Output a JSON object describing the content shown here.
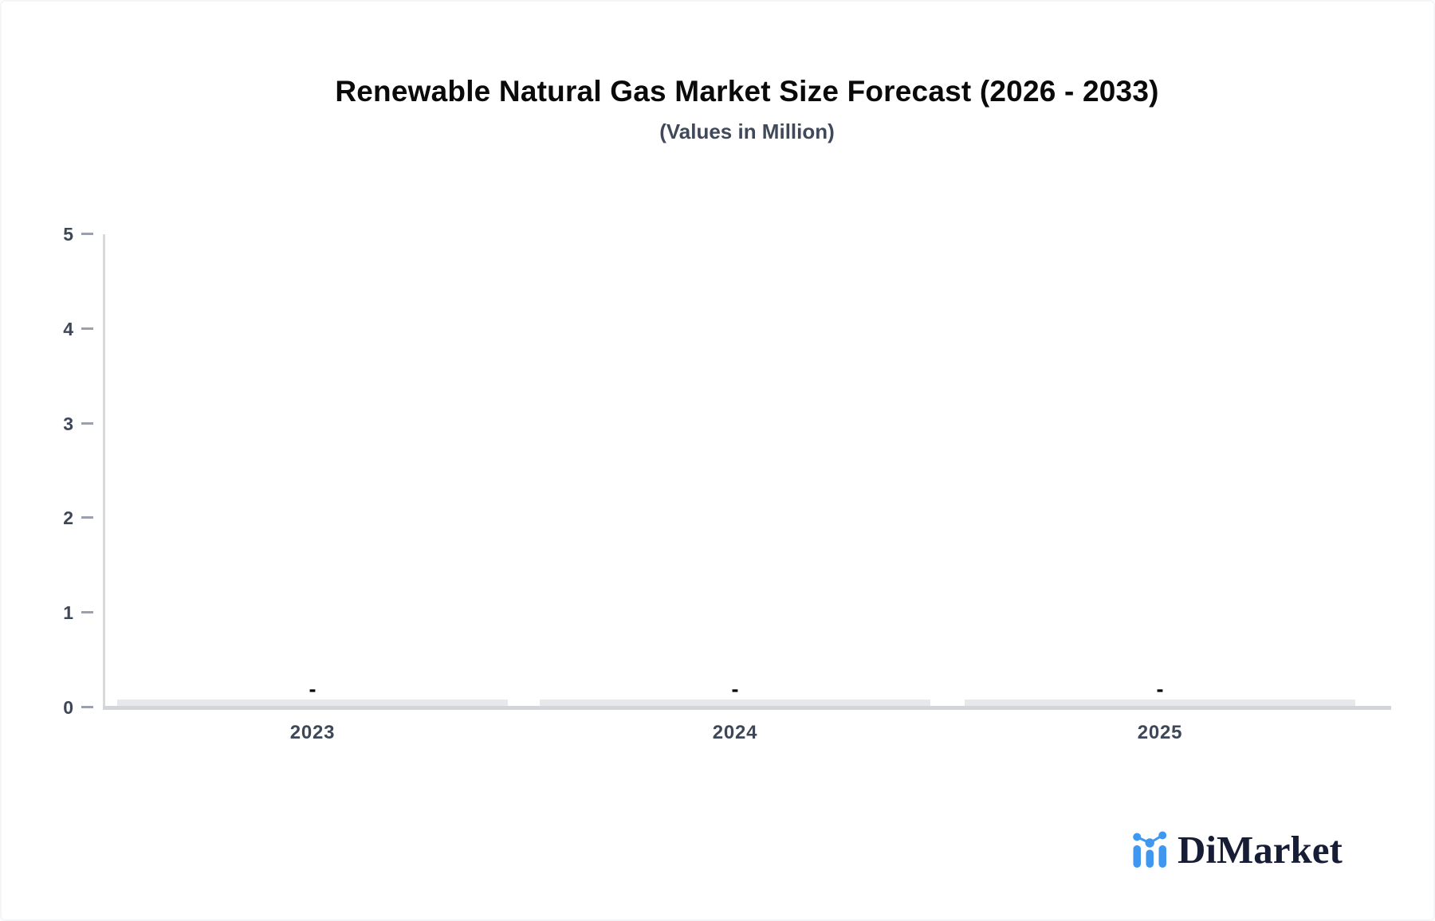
{
  "header": {
    "title": "Renewable Natural Gas Market Size Forecast (2026 - 2033)",
    "subtitle": "(Values in Million)"
  },
  "chart_data": {
    "type": "bar",
    "title": "Renewable Natural Gas Market Size Forecast (2026 - 2033)",
    "subtitle": "(Values in Million)",
    "categories": [
      "2023",
      "2024",
      "2025"
    ],
    "series": [
      {
        "name": "Market Size",
        "values": [
          null,
          null,
          null
        ]
      }
    ],
    "value_labels": [
      "-",
      "-",
      "-"
    ],
    "xlabel": "",
    "ylabel": "",
    "ylim": [
      0,
      5
    ],
    "yticks": [
      0,
      1,
      2,
      3,
      4,
      5
    ],
    "grid": false,
    "legend": false,
    "bar_color": "#e7e8eb",
    "x_axis_color": "#d3d5d9",
    "y_axis_color": "#d8d9dd",
    "tick_mark_color": "#9aa1ac",
    "tick_label_color": "#3d4757",
    "value_label_color": "#000000"
  },
  "branding": {
    "logo_icon": "bar-line-chart-icon",
    "logo_text": "DiMarket",
    "logo_icon_color": "#3f97f0",
    "logo_text_color": "#161d35"
  }
}
